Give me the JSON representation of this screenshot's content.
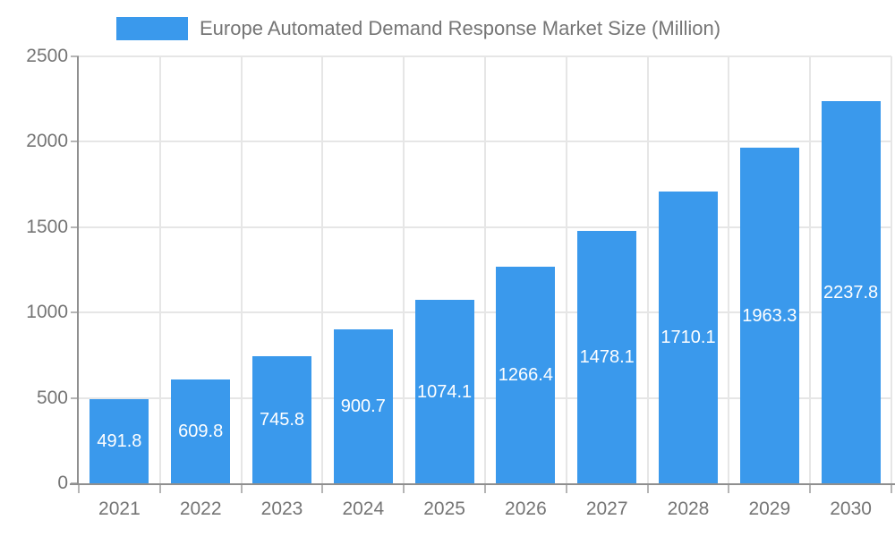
{
  "legend": {
    "label": "Europe Automated Demand Response Market Size (Million)",
    "swatch_color": "#3A99EC"
  },
  "chart_data": {
    "type": "bar",
    "title": "Europe Automated Demand Response Market Size (Million)",
    "categories": [
      "2021",
      "2022",
      "2023",
      "2024",
      "2025",
      "2026",
      "2027",
      "2028",
      "2029",
      "2030"
    ],
    "series": [
      {
        "name": "Europe Automated Demand Response Market Size (Million)",
        "values": [
          491.8,
          609.8,
          745.8,
          900.7,
          1074.1,
          1266.4,
          1478.1,
          1710.1,
          1963.3,
          2237.8
        ]
      }
    ],
    "value_labels": [
      "491.8",
      "609.8",
      "745.8",
      "900.7",
      "1074.1",
      "1266.4",
      "1478.1",
      "1710.1",
      "1963.3",
      "2237.8"
    ],
    "xlabel": "",
    "ylabel": "",
    "ylim": [
      0,
      2500
    ],
    "yticks": [
      0,
      500,
      1000,
      1500,
      2000,
      2500
    ],
    "grid": true,
    "legend_position": "top",
    "bar_color": "#3A99EC",
    "value_label_color": "#FFFFFF"
  },
  "colors": {
    "bar": "#3A99EC",
    "axis": "#8F8F8F",
    "tick": "#B5B5B5",
    "gridline": "#E6E6E6",
    "label_text": "#757575",
    "background": "#FFFFFF"
  }
}
